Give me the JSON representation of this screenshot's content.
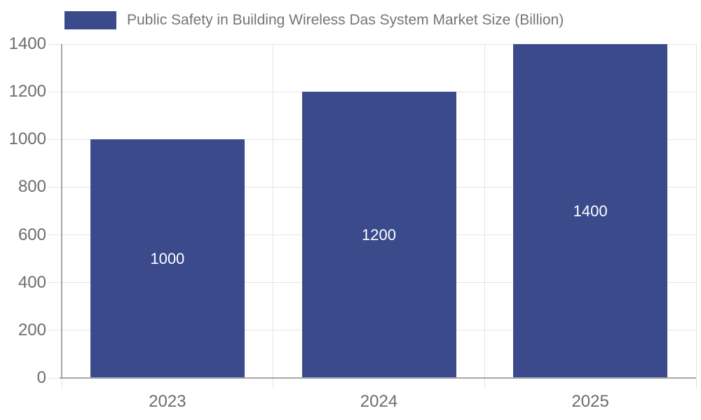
{
  "legend": {
    "series_label": "Public Safety in Building Wireless Das System Market Size (Billion)"
  },
  "colors": {
    "bar": "#3A4A8B",
    "title_text": "#757575",
    "axis_text": "#6D6D6D",
    "gridline": "#E4E4E4",
    "axis_line": "#A6A6A6",
    "bar_label": "#FFFFFF",
    "background": "#FFFFFF"
  },
  "chart_data": {
    "type": "bar",
    "title": "Public Safety in Building Wireless Das System Market Size (Billion)",
    "categories": [
      "2023",
      "2024",
      "2025"
    ],
    "values": [
      1000,
      1200,
      1400
    ],
    "bar_labels": [
      "1000",
      "1200",
      "1400"
    ],
    "xlabel": "",
    "ylabel": "",
    "yticks": [
      0,
      200,
      400,
      600,
      800,
      1000,
      1200,
      1400
    ],
    "ylim": [
      0,
      1400
    ],
    "grid": true,
    "legend_position": "top-left",
    "bar_label_position": "center-inside"
  }
}
